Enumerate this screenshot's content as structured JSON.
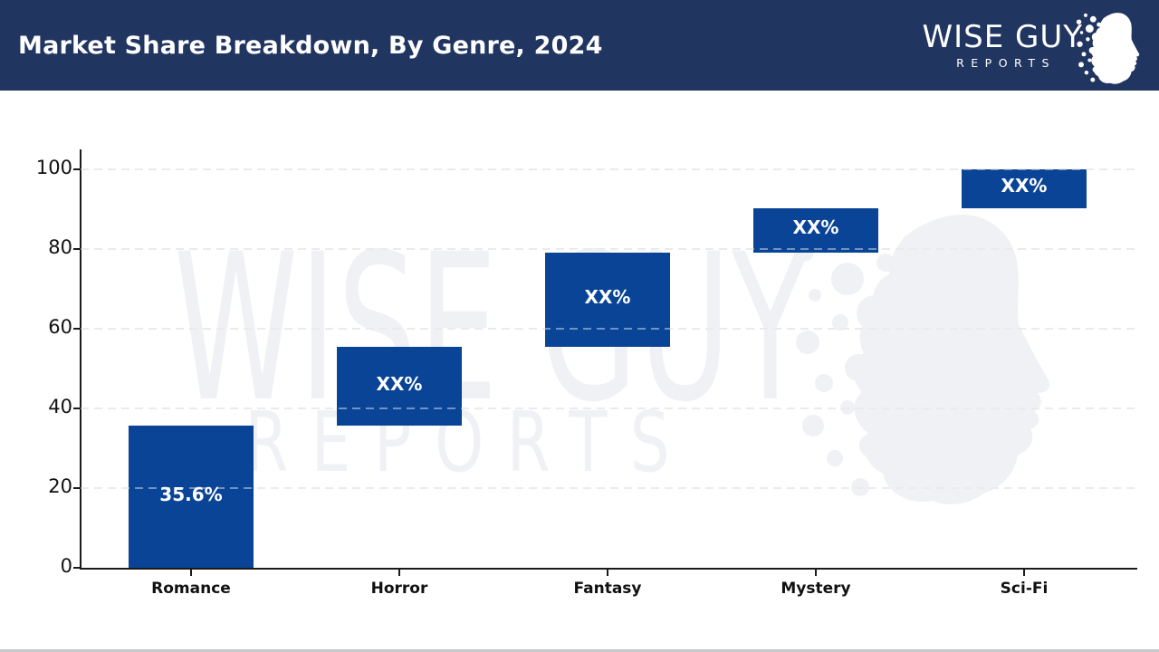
{
  "header": {
    "title": "Market Share Breakdown, By Genre, 2024",
    "logo": {
      "line1": "WISE GUY",
      "line2": "REPORTS"
    }
  },
  "watermark": {
    "line1": "WISE GUY",
    "line2": "REPORTS"
  },
  "colors": {
    "header_bg": "#213561",
    "title_text": "#ffffff",
    "bar": "#0a4496",
    "bar_label": "#ffffff",
    "grid": "#dcdcdc",
    "axis": "#1a1a1a",
    "watermark": "#eff1f4",
    "footer_line": "#c6c8ca"
  },
  "chart_data": {
    "type": "bar",
    "subtype": "waterfall",
    "title": "Market Share Breakdown, By Genre, 2024",
    "categories": [
      "Romance",
      "Horror",
      "Fantasy",
      "Mystery",
      "Sci-Fi"
    ],
    "values": [
      35.6,
      19.9,
      23.7,
      11.1,
      9.7
    ],
    "segments": [
      {
        "category": "Romance",
        "start": 0,
        "end": 35.6,
        "label": "35.6%"
      },
      {
        "category": "Horror",
        "start": 35.6,
        "end": 55.5,
        "label": "XX%"
      },
      {
        "category": "Fantasy",
        "start": 55.5,
        "end": 79.2,
        "label": "XX%"
      },
      {
        "category": "Mystery",
        "start": 79.2,
        "end": 90.3,
        "label": "XX%"
      },
      {
        "category": "Sci-Fi",
        "start": 90.3,
        "end": 100,
        "label": "XX%"
      }
    ],
    "xlabel": "",
    "ylabel": "",
    "y_ticks": [
      0,
      20,
      40,
      60,
      80,
      100
    ],
    "ylim": [
      0,
      105
    ],
    "grid": "horizontal-dashed",
    "legend": "none",
    "bar_color": "#0a4496"
  }
}
